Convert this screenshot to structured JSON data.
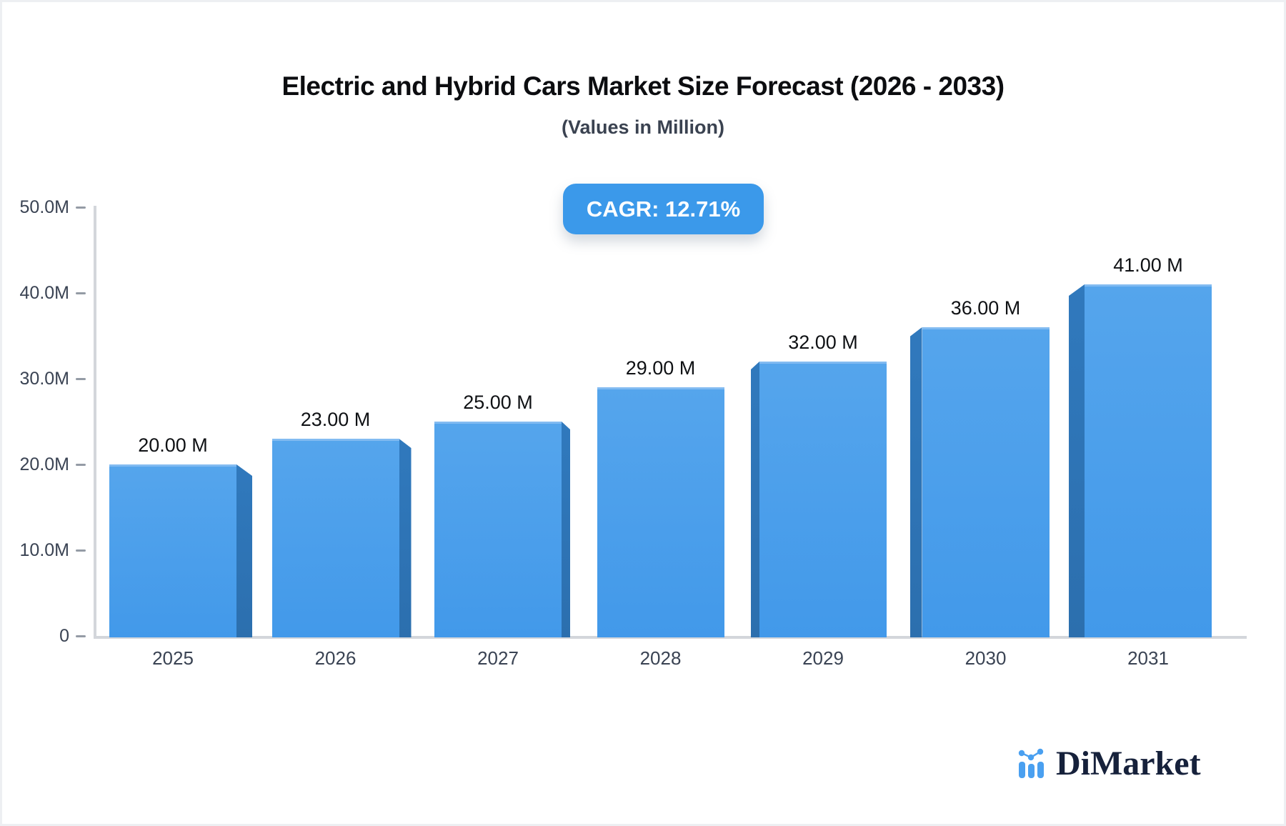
{
  "header": {
    "title": "Electric and Hybrid Cars Market Size Forecast (2026 - 2033)",
    "subtitle": "(Values in Million)",
    "cagr_badge": "CAGR: 12.71%"
  },
  "chart_data": {
    "type": "bar",
    "style": "3d-column-perspective",
    "title": "Electric and Hybrid Cars Market Size Forecast (2026 - 2033)",
    "subtitle": "(Values in Million)",
    "unit": "Million",
    "cagr_percent": 12.71,
    "categories": [
      "2025",
      "2026",
      "2027",
      "2028",
      "2029",
      "2030",
      "2031"
    ],
    "values": [
      20,
      23,
      25,
      29,
      32,
      36,
      41
    ],
    "value_labels": [
      "20.00 M",
      "23.00 M",
      "25.00 M",
      "29.00 M",
      "32.00 M",
      "36.00 M",
      "41.00 M"
    ],
    "yaxis": {
      "min": 0,
      "max": 50,
      "tick_step": 10,
      "tick_labels": [
        "0",
        "10.0M",
        "20.0M",
        "30.0M",
        "40.0M",
        "50.0M"
      ]
    },
    "grid": false,
    "legend": null,
    "colors": {
      "bar_face_top": "#55a5ec",
      "bar_face_bottom": "#4299ea",
      "bar_side_top": "#3079bd",
      "bar_side_bottom": "#2c6fae",
      "bar_top_edge": "#82bbf1",
      "axis_line": "#d3d6db",
      "tick": "#949ba5",
      "value_label": "#0f1114",
      "axis_label": "#3a4353",
      "badge_bg": "#3b99ea",
      "badge_text": "#ffffff"
    }
  },
  "footer": {
    "brand": "DiMarket",
    "logo_icon": "mini-bar-line-chart-icon",
    "logo_color": "#4aa0f0"
  }
}
